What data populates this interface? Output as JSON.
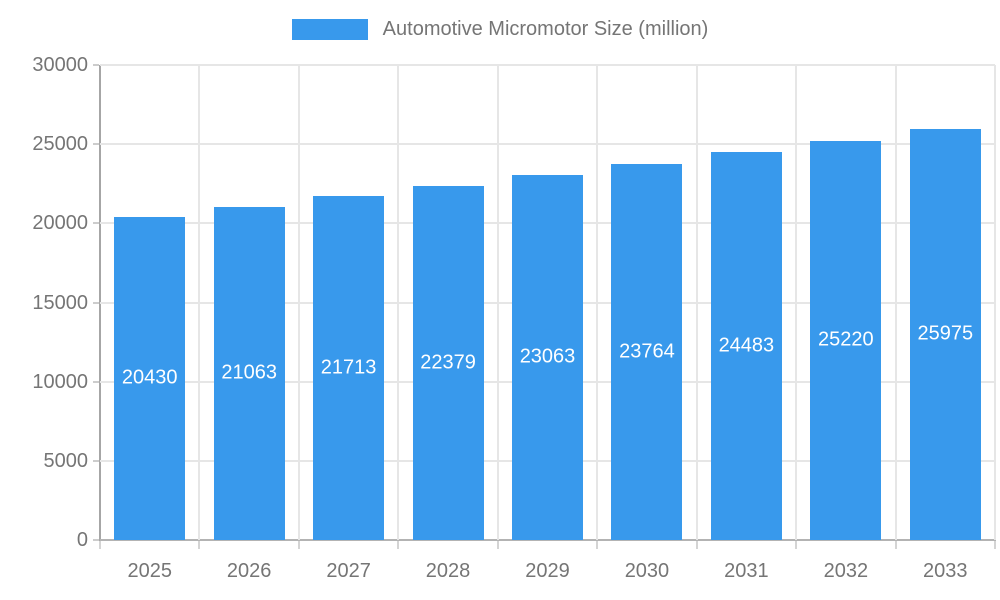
{
  "legend": {
    "label": "Automotive Micromotor Size (million)"
  },
  "colors": {
    "bar": "#3899ec",
    "grid": "#e6e6e6",
    "axis_y": "#a6a6a6",
    "axis_x": "#b3b3b3",
    "tick": "#d4d4d4",
    "axis_text": "#757575",
    "value_label_text": "#ffffff",
    "background": "#ffffff"
  },
  "chart_data": {
    "type": "bar",
    "title": "Automotive Micromotor Size (million)",
    "categories": [
      "2025",
      "2026",
      "2027",
      "2028",
      "2029",
      "2030",
      "2031",
      "2032",
      "2033"
    ],
    "values": [
      20430,
      21063,
      21713,
      22379,
      23063,
      23764,
      24483,
      25220,
      25975
    ],
    "xlabel": "",
    "ylabel": "",
    "ylim": [
      0,
      30000
    ],
    "yticks": [
      0,
      5000,
      10000,
      15000,
      20000,
      25000,
      30000
    ],
    "grid": true,
    "legend_position": "top",
    "value_labels": "inside-center"
  }
}
